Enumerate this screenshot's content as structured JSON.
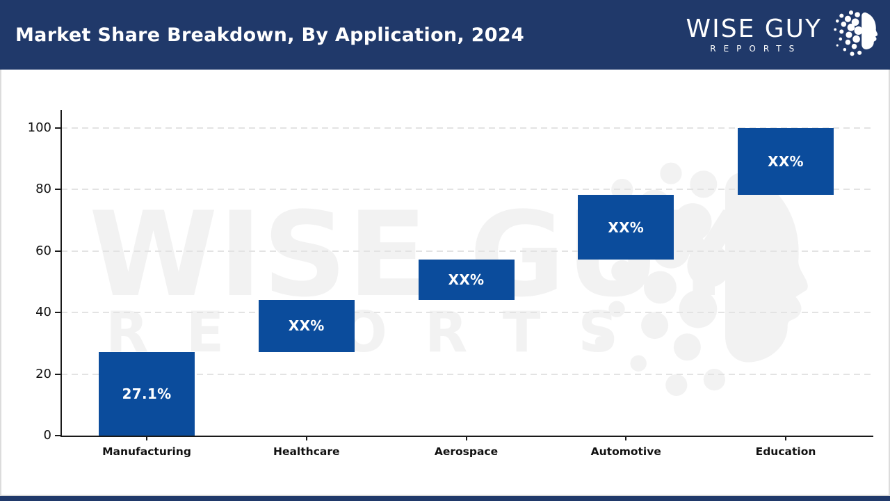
{
  "theme": {
    "header_bg": "#20396A",
    "footer_bg": "#20396A",
    "bar_color": "#0B4C9C",
    "grid_color": "#E3E3E3",
    "axis_color": "#1A1A1A",
    "watermark_color": "#F2F2F2"
  },
  "header": {
    "title": "Market Share Breakdown, By Application, 2024",
    "logo": {
      "line1": "WISE GUY",
      "line2": "REPORTS"
    }
  },
  "watermark": {
    "line1": "WISE GUY",
    "line2": "REPORTS"
  },
  "chart_data": {
    "type": "bar",
    "subtype": "floating-waterfall",
    "title": "Market Share Breakdown, By Application, 2024",
    "categories": [
      "Manufacturing",
      "Healthcare",
      "Aerospace",
      "Automotive",
      "Education"
    ],
    "bars": [
      {
        "category": "Manufacturing",
        "start": 0,
        "end": 27.1,
        "label": "27.1%"
      },
      {
        "category": "Healthcare",
        "start": 27.1,
        "end": 44.2,
        "label": "XX%"
      },
      {
        "category": "Aerospace",
        "start": 44.2,
        "end": 57.3,
        "label": "XX%"
      },
      {
        "category": "Automotive",
        "start": 57.3,
        "end": 78.2,
        "label": "XX%"
      },
      {
        "category": "Education",
        "start": 78.2,
        "end": 100,
        "label": "XX%"
      }
    ],
    "xlabel": "",
    "ylabel": "",
    "ylim": [
      0,
      100
    ],
    "yticks": [
      0,
      20,
      40,
      60,
      80,
      100
    ],
    "grid": "horizontal dashed",
    "legend": false
  }
}
